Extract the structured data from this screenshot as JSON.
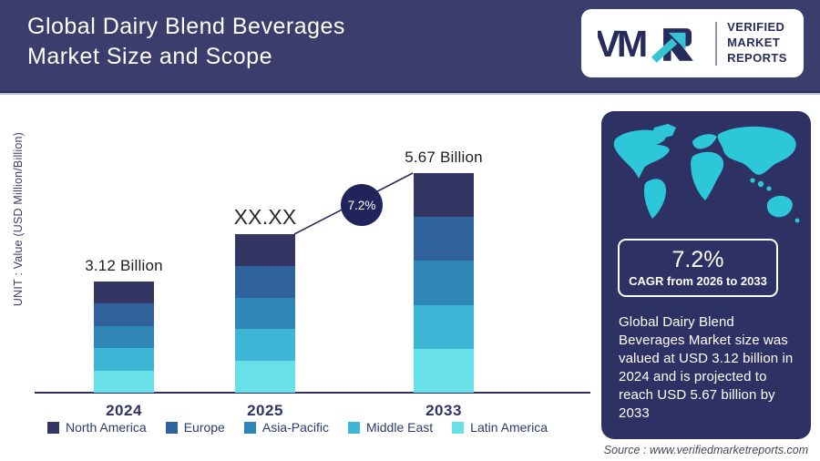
{
  "header": {
    "title_line1": "Global Dairy Blend Beverages",
    "title_line2": "Market Size and Scope",
    "logo": {
      "mark": "VMR",
      "name_line1": "VERIFIED",
      "name_line2": "MARKET",
      "name_line3": "REPORTS"
    }
  },
  "chart_data": {
    "type": "bar",
    "stacked": true,
    "title": "Global Dairy Blend Beverages Market Size and Scope",
    "ylabel": "UNIT : Value (USD Million/Billion)",
    "categories": [
      "2024",
      "2025",
      "2033"
    ],
    "bar_totals_usd_billion": [
      3.12,
      null,
      5.67
    ],
    "bar_value_labels": [
      "3.12 Billion",
      "XX.XX",
      "5.67 Billion"
    ],
    "annotation": "7.2%",
    "series": [
      {
        "name": "North America",
        "color": "#333663"
      },
      {
        "name": "Europe",
        "color": "#30639b"
      },
      {
        "name": "Asia-Pacific",
        "color": "#2f87b8"
      },
      {
        "name": "Middle East",
        "color": "#3eb6d5"
      },
      {
        "name": "Latin America",
        "color": "#68e0e8"
      }
    ],
    "legend_position": "bottom",
    "grid": false
  },
  "sidebar": {
    "cagr_value": "7.2%",
    "cagr_label": "CAGR from 2026 to 2033",
    "description": "Global Dairy Blend Beverages Market size was valued at USD 3.12 billion in 2024 and is projected to reach USD 5.67 billion by 2033",
    "map_color": "#2cc7d9"
  },
  "footer": {
    "source": "Source : www.verifiedmarketreports.com"
  },
  "colors": {
    "header_bg": "#3b3e6c",
    "sidebar_bg": "#2d3163",
    "annotation_circle": "#20245a",
    "logo_navy": "#272c5c",
    "logo_teal": "#36c3d3",
    "axis": "#2c3060"
  }
}
